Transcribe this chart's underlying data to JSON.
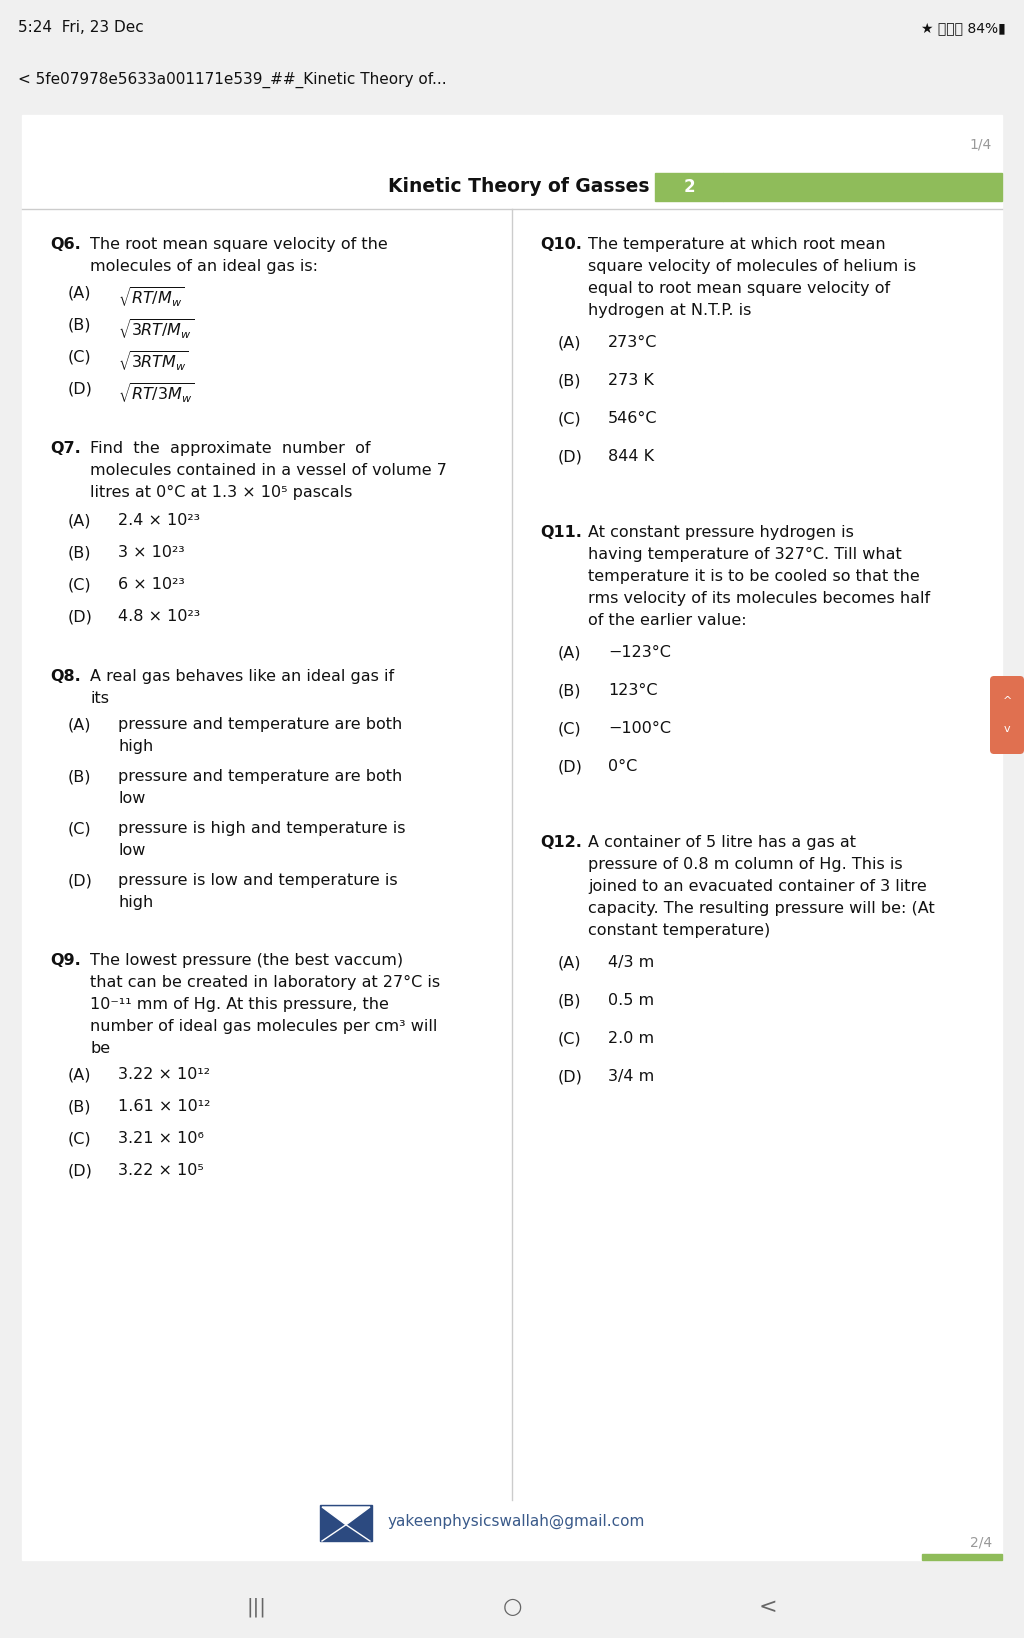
{
  "bg_color": "#f0f0f0",
  "page_bg": "#ffffff",
  "header_title": "Kinetic Theory of Gasses",
  "header_badge": "2",
  "header_badge_color": "#8fbc5a",
  "footer_email": "yakeenphysicswallah@gmail.com",
  "page_num_top": "1/4",
  "page_num_bottom": "2/4",
  "scroll_btn_color": "#e07050",
  "text_color": "#111111",
  "gray_text": "#999999",
  "divider_color": "#cccccc"
}
